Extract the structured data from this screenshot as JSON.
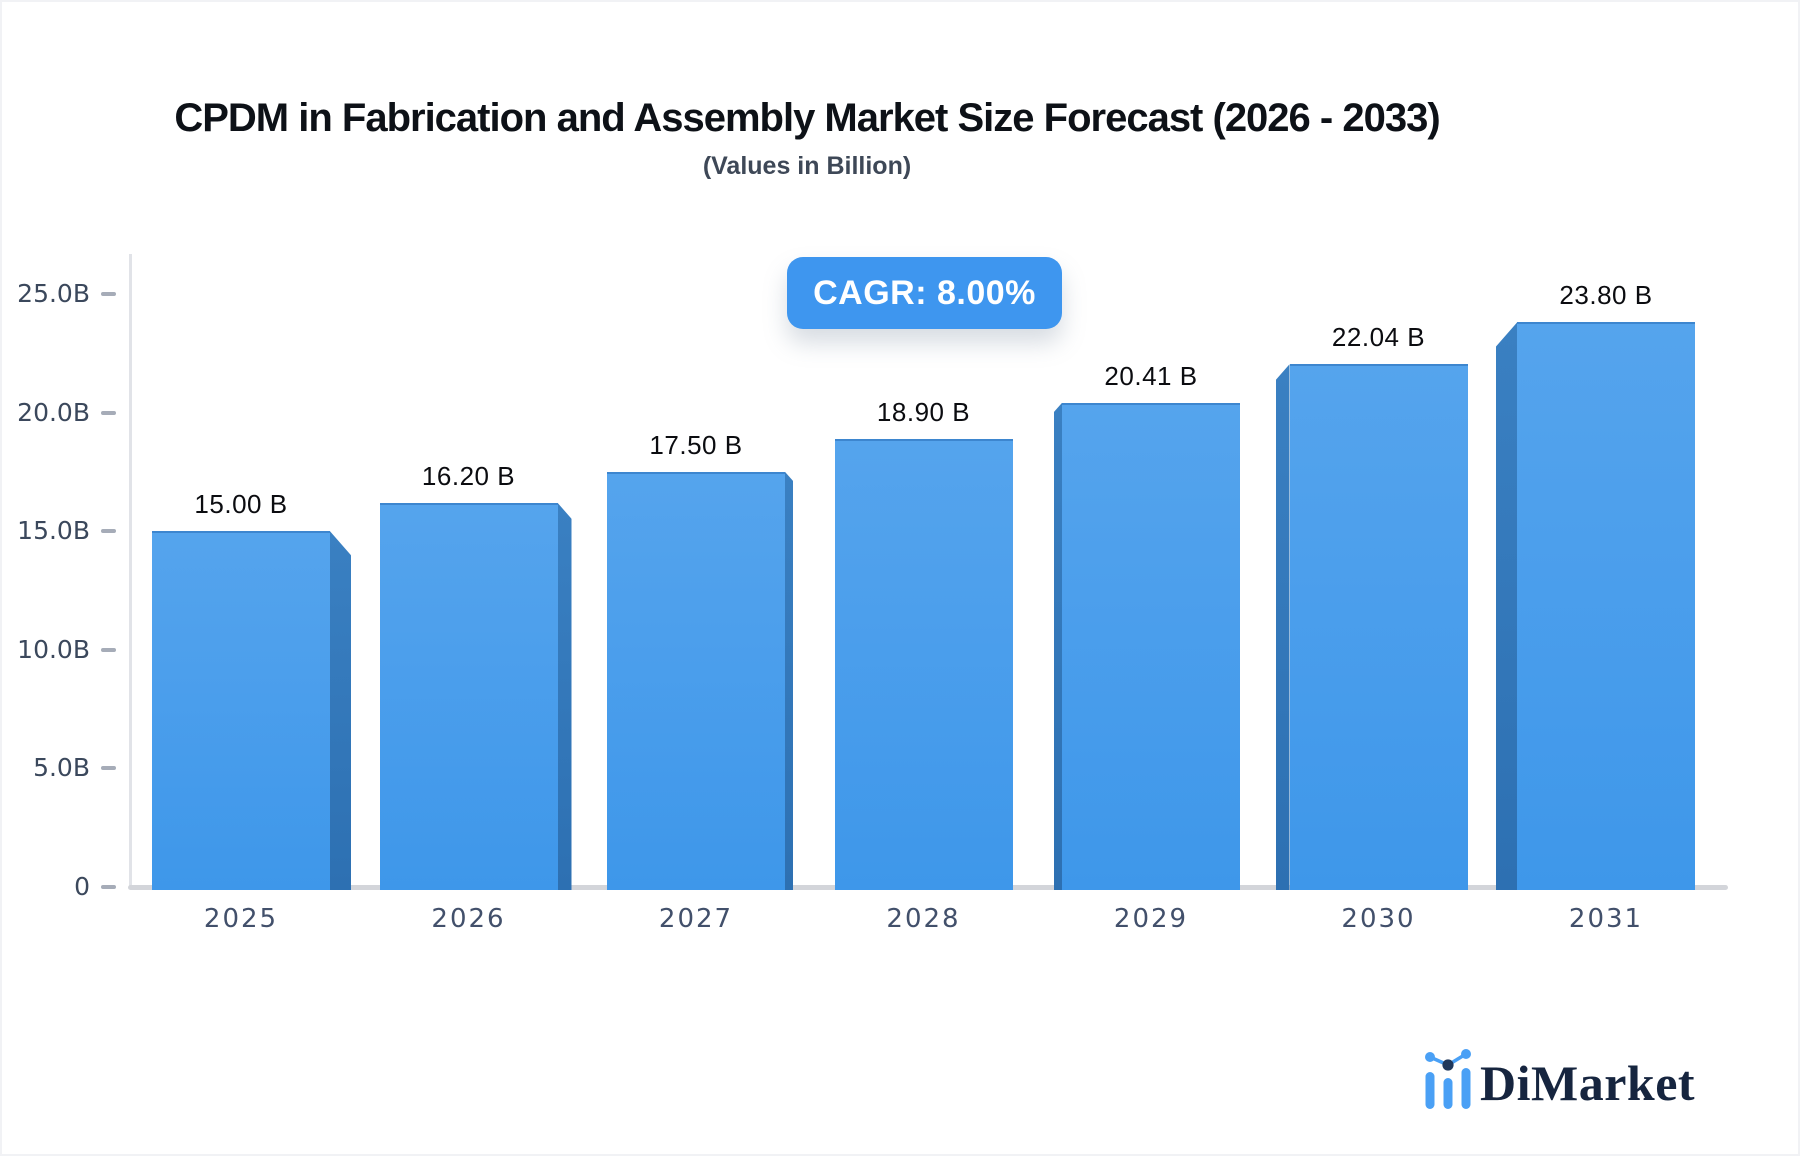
{
  "title": "CPDM in Fabrication and Assembly Market Size Forecast (2026 - 2033)",
  "subtitle": "(Values in Billion)",
  "badge": {
    "label": "CAGR: 8.00%"
  },
  "logo": {
    "text": "DiMarket",
    "icon": "mini-bar-chart-icon"
  },
  "colors": {
    "badge_bg": "#3e96ef",
    "bar_top": "#55a4ed",
    "bar_bottom": "#3e97ea",
    "bar_edge": "#3d86cf",
    "bar_side_top": "#3a80c2",
    "bar_side_bottom": "#2d70b2",
    "axis_text": "#3b485c",
    "x_text": "#42506b",
    "value_text": "#0b0c10",
    "tick_dash": "#a6acb8",
    "baseline": "#d3d5da",
    "axis_vline": "#e1e3e8",
    "title_text": "#0d1117",
    "subtitle_text": "#3e4857",
    "logo_text": "#16253f",
    "logo_blue": "#4aa0f5",
    "logo_dot_dark": "#20385c"
  },
  "chart_data": {
    "type": "bar",
    "style": "3d-column",
    "title": "CPDM in Fabrication and Assembly Market Size Forecast (2026 - 2033)",
    "subtitle": "(Values in Billion)",
    "unit": "Billion",
    "annotation_badge": "CAGR: 8.00%",
    "categories": [
      "2025",
      "2026",
      "2027",
      "2028",
      "2029",
      "2030",
      "2031"
    ],
    "values": [
      15.0,
      16.2,
      17.5,
      18.9,
      20.41,
      22.04,
      23.8
    ],
    "value_labels": [
      "15.00 B",
      "16.20 B",
      "17.50 B",
      "18.90 B",
      "20.41 B",
      "22.04 B",
      "23.80 B"
    ],
    "y_axis": {
      "min": 0,
      "max": 25,
      "ticks": [
        {
          "value": 25,
          "label": "25.0B"
        },
        {
          "value": 20,
          "label": "20.0B"
        },
        {
          "value": 15,
          "label": "15.0B"
        },
        {
          "value": 10,
          "label": "10.0B"
        },
        {
          "value": 5,
          "label": "5.0B"
        },
        {
          "value": 0,
          "label": "0"
        }
      ]
    },
    "grid": false,
    "legend": false
  }
}
